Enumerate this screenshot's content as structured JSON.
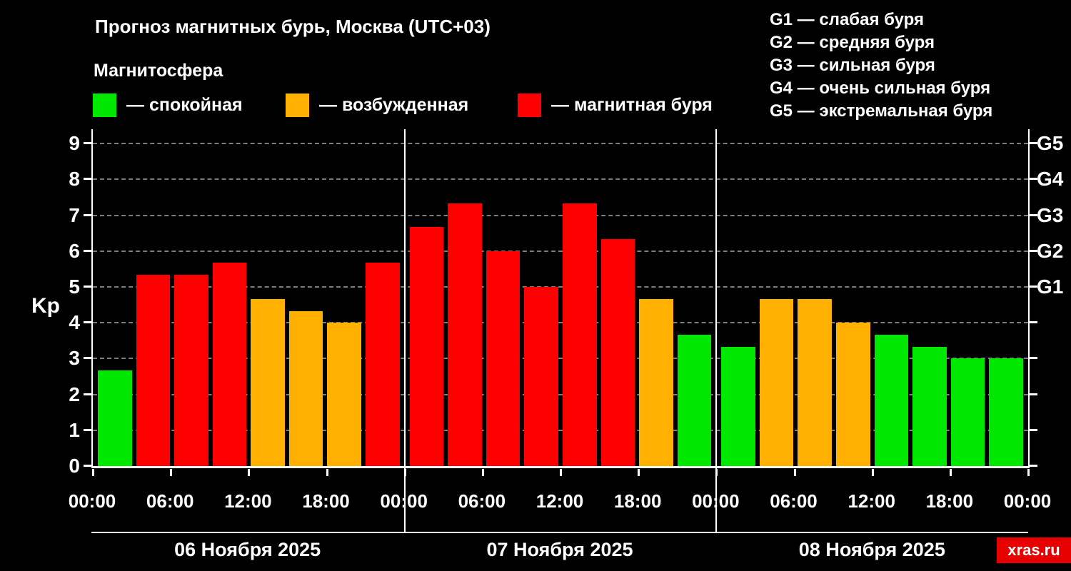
{
  "header": {
    "title": "Прогноз магнитных бурь, Москва (UTC+03)",
    "subtitle": "Магнитосфера"
  },
  "legend": [
    {
      "label": "— спокойная",
      "key": "quiet"
    },
    {
      "label": "— возбужденная",
      "key": "excited"
    },
    {
      "label": "— магнитная буря",
      "key": "storm"
    }
  ],
  "g_scale_legend": [
    "G1 — слабая буря",
    "G2 — средняя буря",
    "G3 — сильная буря",
    "G4 — очень сильная буря",
    "G5 — экстремальная буря"
  ],
  "watermark": "xras.ru",
  "chart_data": {
    "type": "bar",
    "title": "Прогноз магнитных бурь, Москва (UTC+03)",
    "ylabel": "Kp",
    "ylim": [
      0,
      9.4
    ],
    "yticks": [
      0,
      1,
      2,
      3,
      4,
      5,
      6,
      7,
      8,
      9
    ],
    "grid": "horizontal dashed lines at each integer Kp value",
    "legend_position": "top",
    "right_axis_labels": [
      {
        "value": 5,
        "label": "G1"
      },
      {
        "value": 6,
        "label": "G2"
      },
      {
        "value": 7,
        "label": "G3"
      },
      {
        "value": 8,
        "label": "G4"
      },
      {
        "value": 9,
        "label": "G5"
      }
    ],
    "x_tick_labels": [
      "00:00",
      "06:00",
      "12:00",
      "18:00",
      "00:00",
      "06:00",
      "12:00",
      "18:00",
      "00:00",
      "06:00",
      "12:00",
      "18:00",
      "00:00"
    ],
    "bar_interval_hours": 3,
    "days": [
      {
        "date": "06 Ноября 2025",
        "values": [
          2.67,
          5.33,
          5.33,
          5.67,
          4.67,
          4.33,
          4.0,
          5.67
        ]
      },
      {
        "date": "07 Ноября 2025",
        "values": [
          6.67,
          7.33,
          6.0,
          5.0,
          7.33,
          6.33,
          4.67,
          3.67
        ]
      },
      {
        "date": "08 Ноября 2025",
        "values": [
          3.33,
          4.67,
          4.67,
          4.0,
          3.67,
          3.33,
          3.0,
          3.0
        ]
      }
    ],
    "color_rules": {
      "quiet_below": 4,
      "storm_from": 5
    },
    "colors": {
      "quiet": "#00e800",
      "excited": "#ffb000",
      "storm": "#ff0000"
    }
  }
}
